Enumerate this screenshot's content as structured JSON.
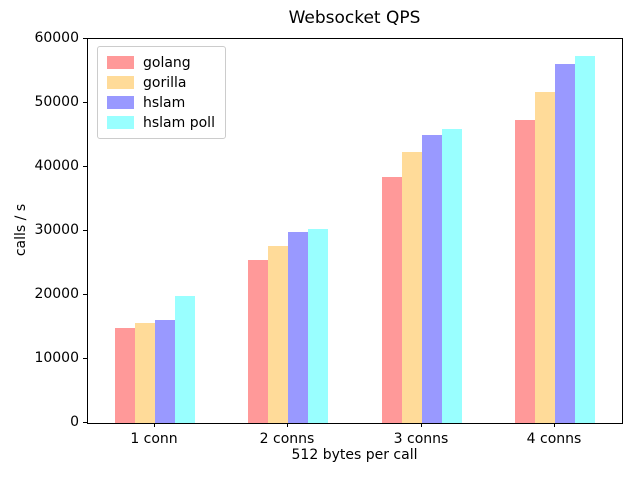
{
  "chart_data": {
    "type": "bar",
    "title": "Websocket QPS",
    "xlabel": "512 bytes per call",
    "ylabel": "calls / s",
    "categories": [
      "1 conn",
      "2 conns",
      "3 conns",
      "4 conns"
    ],
    "series": [
      {
        "name": "golang",
        "color": "#ff9999",
        "values": [
          14900,
          25500,
          38500,
          47400
        ]
      },
      {
        "name": "gorilla",
        "color": "#ffdb99",
        "values": [
          15600,
          27700,
          42300,
          51800
        ]
      },
      {
        "name": "hslam",
        "color": "#9999ff",
        "values": [
          16150,
          29800,
          45000,
          56100
        ]
      },
      {
        "name": "hslam poll",
        "color": "#99ffff",
        "values": [
          19900,
          30250,
          46000,
          57300
        ]
      }
    ],
    "ylim": [
      0,
      60000
    ],
    "yticks": [
      0,
      10000,
      20000,
      30000,
      40000,
      50000,
      60000
    ],
    "grid": false,
    "legend_position": "upper-left",
    "bar_width_fraction": 0.15
  }
}
